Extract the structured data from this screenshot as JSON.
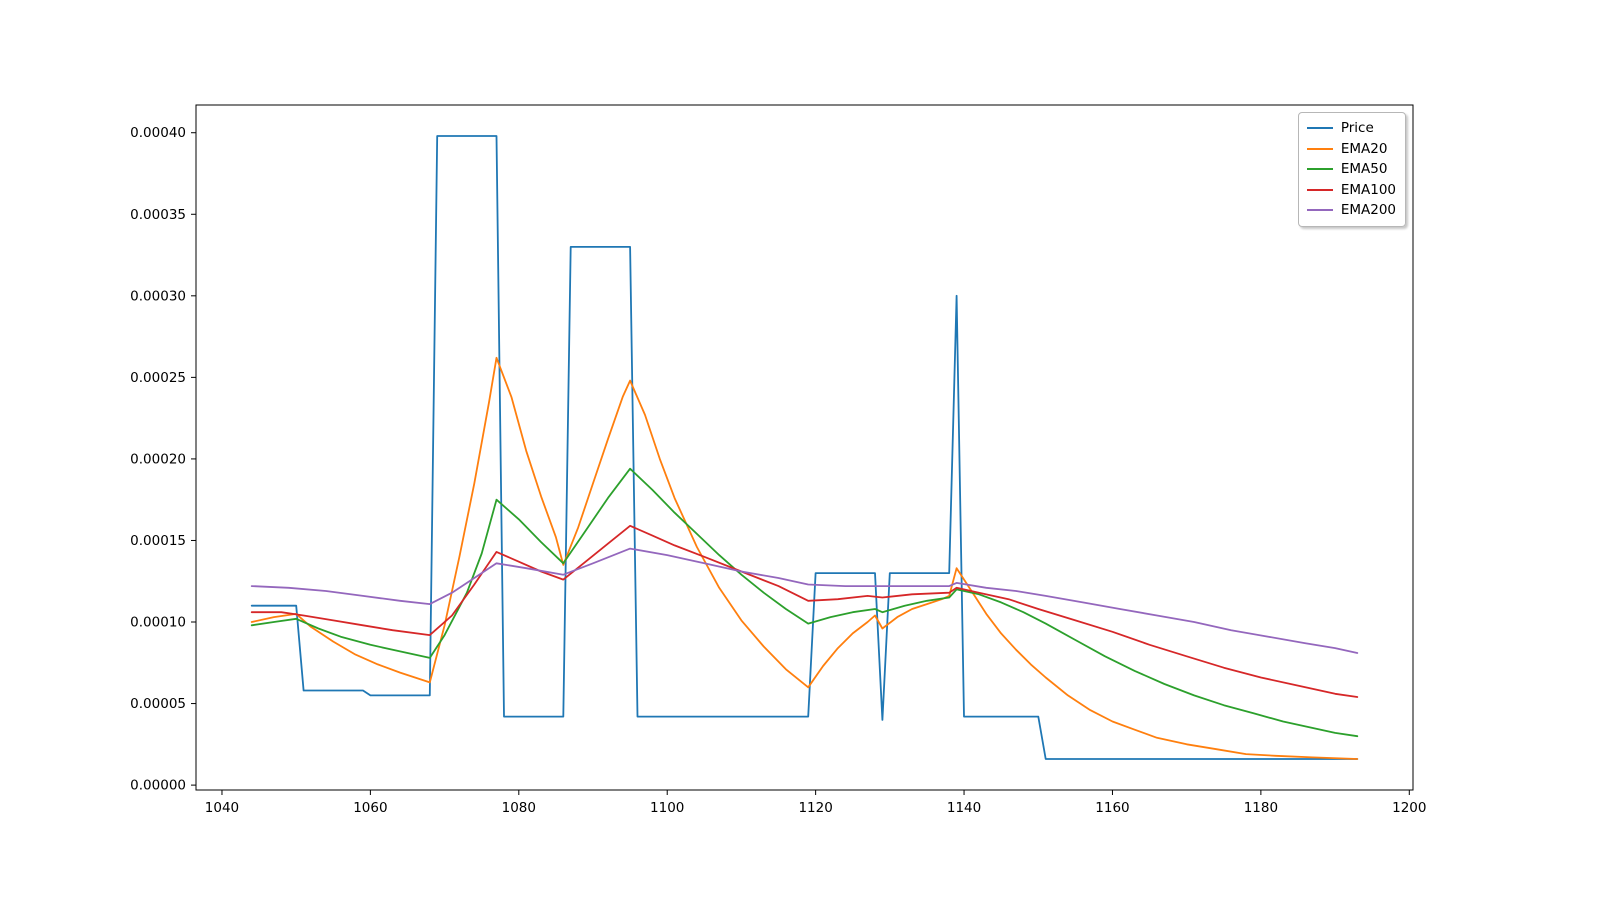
{
  "page": {
    "background": "#ffffff"
  },
  "chart_data": {
    "type": "line",
    "title": "",
    "xlabel": "",
    "ylabel": "",
    "grid": false,
    "xlim": [
      1036.5,
      1200.5
    ],
    "ylim": [
      -3e-06,
      0.000417
    ],
    "x_ticks": [
      1040,
      1060,
      1080,
      1100,
      1120,
      1140,
      1160,
      1180,
      1200
    ],
    "y_ticks": [
      0,
      5e-05,
      0.0001,
      0.00015,
      0.0002,
      0.00025,
      0.0003,
      0.00035,
      0.0004
    ],
    "y_tick_labels": [
      "0.00000",
      "0.00005",
      "0.00010",
      "0.00015",
      "0.00020",
      "0.00025",
      "0.00030",
      "0.00035",
      "0.00040"
    ],
    "legend": {
      "position": "upper right",
      "entries": [
        "Price",
        "EMA20",
        "EMA50",
        "EMA100",
        "EMA200"
      ]
    },
    "series": [
      {
        "name": "Price",
        "color": "#1f77b4",
        "points": [
          [
            1044,
            0.00011
          ],
          [
            1050,
            0.00011
          ],
          [
            1051,
            5.8e-05
          ],
          [
            1059,
            5.8e-05
          ],
          [
            1060,
            5.5e-05
          ],
          [
            1068,
            5.5e-05
          ],
          [
            1069,
            0.000398
          ],
          [
            1077,
            0.000398
          ],
          [
            1078,
            4.2e-05
          ],
          [
            1086,
            4.2e-05
          ],
          [
            1087,
            0.00033
          ],
          [
            1095,
            0.00033
          ],
          [
            1096,
            4.2e-05
          ],
          [
            1119,
            4.2e-05
          ],
          [
            1120,
            0.00013
          ],
          [
            1128,
            0.00013
          ],
          [
            1129,
            4e-05
          ],
          [
            1130,
            0.00013
          ],
          [
            1138,
            0.00013
          ],
          [
            1139,
            0.0003
          ],
          [
            1140,
            4.2e-05
          ],
          [
            1150,
            4.2e-05
          ],
          [
            1151,
            1.6e-05
          ],
          [
            1193,
            1.6e-05
          ]
        ]
      },
      {
        "name": "EMA20",
        "color": "#ff7f0e",
        "points": [
          [
            1044,
            0.0001
          ],
          [
            1047,
            0.000103
          ],
          [
            1050,
            0.000105
          ],
          [
            1052,
            9.7e-05
          ],
          [
            1055,
            8.8e-05
          ],
          [
            1058,
            8e-05
          ],
          [
            1061,
            7.4e-05
          ],
          [
            1064,
            6.9e-05
          ],
          [
            1068,
            6.3e-05
          ],
          [
            1070,
            9.8e-05
          ],
          [
            1072,
            0.00014
          ],
          [
            1074,
            0.000185
          ],
          [
            1076,
            0.000235
          ],
          [
            1077,
            0.000262
          ],
          [
            1079,
            0.000238
          ],
          [
            1081,
            0.000205
          ],
          [
            1083,
            0.000177
          ],
          [
            1085,
            0.000152
          ],
          [
            1086,
            0.000135
          ],
          [
            1088,
            0.000158
          ],
          [
            1090,
            0.000185
          ],
          [
            1092,
            0.000212
          ],
          [
            1094,
            0.000238
          ],
          [
            1095,
            0.000248
          ],
          [
            1097,
            0.000227
          ],
          [
            1099,
            0.0002
          ],
          [
            1101,
            0.000176
          ],
          [
            1104,
            0.000146
          ],
          [
            1107,
            0.000121
          ],
          [
            1110,
            0.000101
          ],
          [
            1113,
            8.5e-05
          ],
          [
            1116,
            7.1e-05
          ],
          [
            1119,
            6e-05
          ],
          [
            1121,
            7.3e-05
          ],
          [
            1123,
            8.4e-05
          ],
          [
            1125,
            9.3e-05
          ],
          [
            1127,
            0.0001
          ],
          [
            1128,
            0.000104
          ],
          [
            1129,
            9.6e-05
          ],
          [
            1131,
            0.000103
          ],
          [
            1133,
            0.000108
          ],
          [
            1135,
            0.000111
          ],
          [
            1137,
            0.000114
          ],
          [
            1138,
            0.000116
          ],
          [
            1139,
            0.000133
          ],
          [
            1141,
            0.000119
          ],
          [
            1143,
            0.000105
          ],
          [
            1145,
            9.3e-05
          ],
          [
            1147,
            8.3e-05
          ],
          [
            1149,
            7.4e-05
          ],
          [
            1151,
            6.6e-05
          ],
          [
            1154,
            5.5e-05
          ],
          [
            1157,
            4.6e-05
          ],
          [
            1160,
            3.9e-05
          ],
          [
            1163,
            3.4e-05
          ],
          [
            1166,
            2.9e-05
          ],
          [
            1170,
            2.5e-05
          ],
          [
            1174,
            2.2e-05
          ],
          [
            1178,
            1.9e-05
          ],
          [
            1182,
            1.8e-05
          ],
          [
            1187,
            1.7e-05
          ],
          [
            1193,
            1.6e-05
          ]
        ]
      },
      {
        "name": "EMA50",
        "color": "#2ca02c",
        "points": [
          [
            1044,
            9.8e-05
          ],
          [
            1047,
            0.0001
          ],
          [
            1050,
            0.000102
          ],
          [
            1053,
            9.6e-05
          ],
          [
            1056,
            9.1e-05
          ],
          [
            1060,
            8.6e-05
          ],
          [
            1064,
            8.2e-05
          ],
          [
            1068,
            7.8e-05
          ],
          [
            1070,
            9.2e-05
          ],
          [
            1073,
            0.000118
          ],
          [
            1075,
            0.000142
          ],
          [
            1077,
            0.000175
          ],
          [
            1080,
            0.000163
          ],
          [
            1083,
            0.000149
          ],
          [
            1086,
            0.000136
          ],
          [
            1089,
            0.000156
          ],
          [
            1092,
            0.000176
          ],
          [
            1095,
            0.000194
          ],
          [
            1098,
            0.000181
          ],
          [
            1101,
            0.000167
          ],
          [
            1104,
            0.000154
          ],
          [
            1107,
            0.000141
          ],
          [
            1110,
            0.000129
          ],
          [
            1113,
            0.000118
          ],
          [
            1116,
            0.000108
          ],
          [
            1119,
            9.9e-05
          ],
          [
            1122,
            0.000103
          ],
          [
            1125,
            0.000106
          ],
          [
            1128,
            0.000108
          ],
          [
            1129,
            0.000106
          ],
          [
            1132,
            0.00011
          ],
          [
            1135,
            0.000113
          ],
          [
            1138,
            0.000115
          ],
          [
            1139,
            0.00012
          ],
          [
            1142,
            0.000117
          ],
          [
            1145,
            0.000112
          ],
          [
            1148,
            0.000106
          ],
          [
            1151,
            9.9e-05
          ],
          [
            1155,
            8.9e-05
          ],
          [
            1159,
            7.9e-05
          ],
          [
            1163,
            7e-05
          ],
          [
            1167,
            6.2e-05
          ],
          [
            1171,
            5.5e-05
          ],
          [
            1175,
            4.9e-05
          ],
          [
            1179,
            4.4e-05
          ],
          [
            1183,
            3.9e-05
          ],
          [
            1187,
            3.5e-05
          ],
          [
            1190,
            3.2e-05
          ],
          [
            1193,
            3e-05
          ]
        ]
      },
      {
        "name": "EMA100",
        "color": "#d62728",
        "points": [
          [
            1044,
            0.000106
          ],
          [
            1048,
            0.000106
          ],
          [
            1051,
            0.000104
          ],
          [
            1055,
            0.000101
          ],
          [
            1059,
            9.8e-05
          ],
          [
            1063,
            9.5e-05
          ],
          [
            1068,
            9.2e-05
          ],
          [
            1071,
            0.000104
          ],
          [
            1074,
            0.000123
          ],
          [
            1077,
            0.000143
          ],
          [
            1080,
            0.000137
          ],
          [
            1083,
            0.000131
          ],
          [
            1086,
            0.000126
          ],
          [
            1089,
            0.000137
          ],
          [
            1092,
            0.000148
          ],
          [
            1095,
            0.000159
          ],
          [
            1098,
            0.000153
          ],
          [
            1101,
            0.000147
          ],
          [
            1105,
            0.00014
          ],
          [
            1110,
            0.000131
          ],
          [
            1115,
            0.000122
          ],
          [
            1119,
            0.000113
          ],
          [
            1123,
            0.000114
          ],
          [
            1127,
            0.000116
          ],
          [
            1129,
            0.000115
          ],
          [
            1133,
            0.000117
          ],
          [
            1138,
            0.000118
          ],
          [
            1139,
            0.000121
          ],
          [
            1142,
            0.000118
          ],
          [
            1146,
            0.000114
          ],
          [
            1150,
            0.000108
          ],
          [
            1155,
            0.000101
          ],
          [
            1160,
            9.4e-05
          ],
          [
            1165,
            8.6e-05
          ],
          [
            1170,
            7.9e-05
          ],
          [
            1175,
            7.2e-05
          ],
          [
            1180,
            6.6e-05
          ],
          [
            1185,
            6.1e-05
          ],
          [
            1190,
            5.6e-05
          ],
          [
            1193,
            5.4e-05
          ]
        ]
      },
      {
        "name": "EMA200",
        "color": "#9467bd",
        "points": [
          [
            1044,
            0.000122
          ],
          [
            1049,
            0.000121
          ],
          [
            1054,
            0.000119
          ],
          [
            1059,
            0.000116
          ],
          [
            1064,
            0.000113
          ],
          [
            1068,
            0.000111
          ],
          [
            1071,
            0.000118
          ],
          [
            1074,
            0.000127
          ],
          [
            1077,
            0.000136
          ],
          [
            1081,
            0.000133
          ],
          [
            1086,
            0.000129
          ],
          [
            1090,
            0.000136
          ],
          [
            1095,
            0.000145
          ],
          [
            1100,
            0.000141
          ],
          [
            1105,
            0.000136
          ],
          [
            1110,
            0.000131
          ],
          [
            1115,
            0.000127
          ],
          [
            1119,
            0.000123
          ],
          [
            1124,
            0.000122
          ],
          [
            1130,
            0.000122
          ],
          [
            1135,
            0.000122
          ],
          [
            1138,
            0.000122
          ],
          [
            1139,
            0.000124
          ],
          [
            1143,
            0.000121
          ],
          [
            1147,
            0.000119
          ],
          [
            1151,
            0.000116
          ],
          [
            1156,
            0.000112
          ],
          [
            1161,
            0.000108
          ],
          [
            1166,
            0.000104
          ],
          [
            1171,
            0.0001
          ],
          [
            1176,
            9.5e-05
          ],
          [
            1181,
            9.1e-05
          ],
          [
            1186,
            8.7e-05
          ],
          [
            1190,
            8.4e-05
          ],
          [
            1193,
            8.1e-05
          ]
        ]
      }
    ]
  }
}
